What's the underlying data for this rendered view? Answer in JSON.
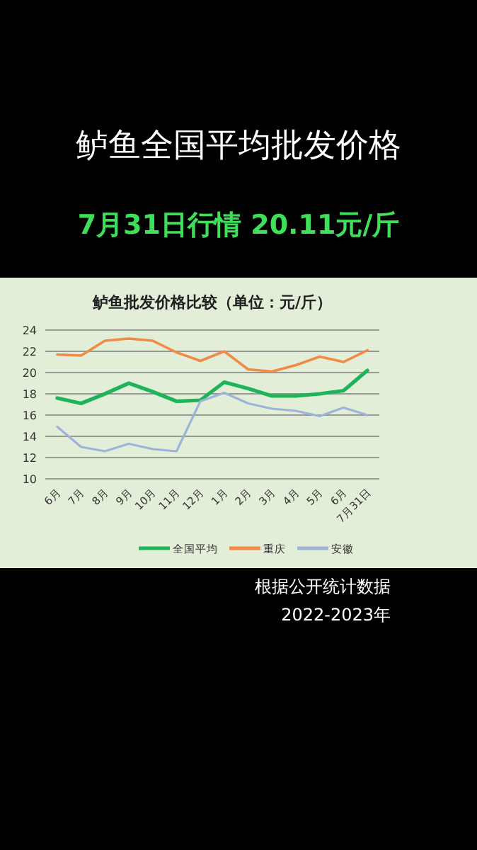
{
  "chart_data": {
    "type": "line",
    "title": "鲈鱼全国平均批发价格",
    "subtitle": "7月31日行情 20.11元/斤",
    "annotations": [
      "鲈鱼批发价格比较（单位：元/斤）",
      "根据公开统计数据",
      "2022-2023年"
    ],
    "categories": [
      "6月",
      "7月",
      "8月",
      "9月",
      "10月",
      "11月",
      "12月",
      "1月",
      "2月",
      "3月",
      "4月",
      "5月",
      "6月",
      "7月31日"
    ],
    "series": [
      {
        "name": "全国平均",
        "color": "#1fb45a",
        "values": [
          17.6,
          17.1,
          18.0,
          19.0,
          18.2,
          17.3,
          17.4,
          19.1,
          18.5,
          17.8,
          17.8,
          18.0,
          18.3,
          20.2
        ]
      },
      {
        "name": "重庆",
        "color": "#f08a45",
        "values": [
          21.7,
          21.6,
          23.0,
          23.2,
          23.0,
          21.9,
          21.1,
          22.0,
          20.3,
          20.1,
          20.7,
          21.5,
          21.0,
          22.1
        ]
      },
      {
        "name": "安徽",
        "color": "#9db3d9",
        "values": [
          14.9,
          13.0,
          12.6,
          13.3,
          12.8,
          12.6,
          17.3,
          18.1,
          17.1,
          16.6,
          16.4,
          15.9,
          16.7,
          16.0
        ]
      }
    ],
    "ylim": [
      10,
      24
    ],
    "yticks": [
      10,
      12,
      14,
      16,
      18,
      20,
      22,
      24
    ],
    "grid": "y",
    "legend": "bottom",
    "marker": "none",
    "line_style": "solid"
  }
}
